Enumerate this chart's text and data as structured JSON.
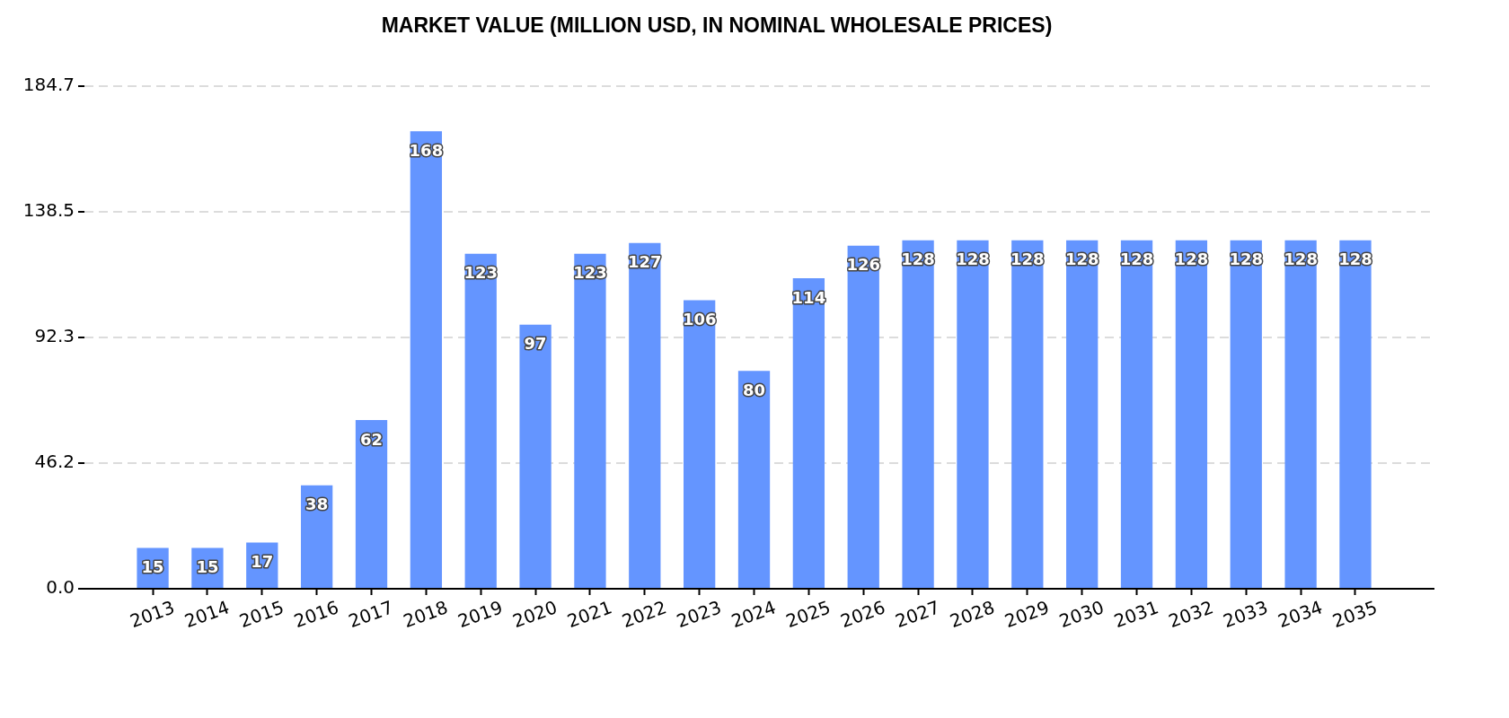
{
  "chart_data": {
    "type": "bar",
    "title": "MARKET VALUE (MILLION USD, IN NOMINAL WHOLESALE PRICES)",
    "categories": [
      "2013",
      "2014",
      "2015",
      "2016",
      "2017",
      "2018",
      "2019",
      "2020",
      "2021",
      "2022",
      "2023",
      "2024",
      "2025",
      "2026",
      "2027",
      "2028",
      "2029",
      "2030",
      "2031",
      "2032",
      "2033",
      "2034",
      "2035"
    ],
    "values": [
      15,
      15,
      17,
      38,
      62,
      168,
      123,
      97,
      123,
      127,
      106,
      80,
      114,
      126,
      128,
      128,
      128,
      128,
      128,
      128,
      128,
      128,
      128
    ],
    "color": "#6495ff",
    "ylim": [
      0,
      184.7
    ],
    "yticks": [
      {
        "value": 0,
        "label": "0.0"
      },
      46.2,
      92.3,
      138.5,
      184.7
    ],
    "grid": "y",
    "data_labels": true
  }
}
